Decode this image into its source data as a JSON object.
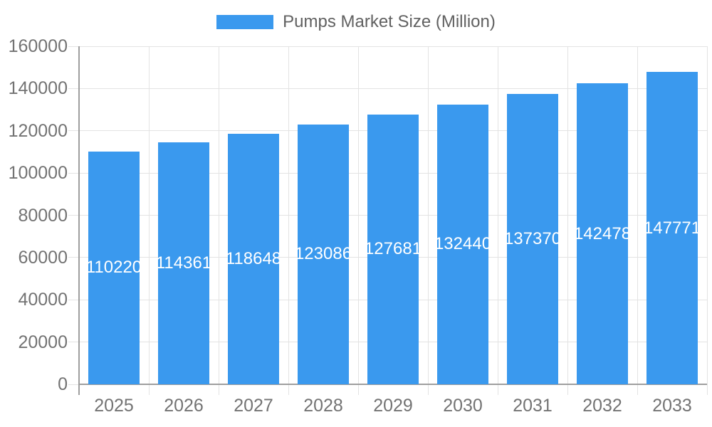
{
  "colors": {
    "bar": "#3A99EE",
    "grid": "#E3E3E3",
    "axis": "#9E9E9E",
    "tick_text": "#737373",
    "legend_text": "#616161",
    "value_label_text": "#FFFFFF",
    "background": "#FFFFFF"
  },
  "chart_data": {
    "type": "bar",
    "title": "",
    "xlabel": "",
    "ylabel": "",
    "categories": [
      "2025",
      "2026",
      "2027",
      "2028",
      "2029",
      "2030",
      "2031",
      "2032",
      "2033"
    ],
    "series": [
      {
        "name": "Pumps Market Size (Million)",
        "values": [
          110220,
          114361,
          118648,
          123086,
          127681,
          132440,
          137370,
          142478,
          147771
        ],
        "color": "#3A99EE"
      }
    ],
    "value_labels": [
      "110220",
      "114361",
      "118648",
      "123086",
      "127681",
      "132440",
      "137370",
      "142478",
      "147771"
    ],
    "value_label_position": "inside-center",
    "ylim": [
      0,
      160000
    ],
    "ytick_step": 20000,
    "y_tick_labels": [
      "0",
      "20000",
      "40000",
      "60000",
      "80000",
      "100000",
      "120000",
      "140000",
      "160000"
    ],
    "grid": true,
    "legend_position": "top-center"
  }
}
